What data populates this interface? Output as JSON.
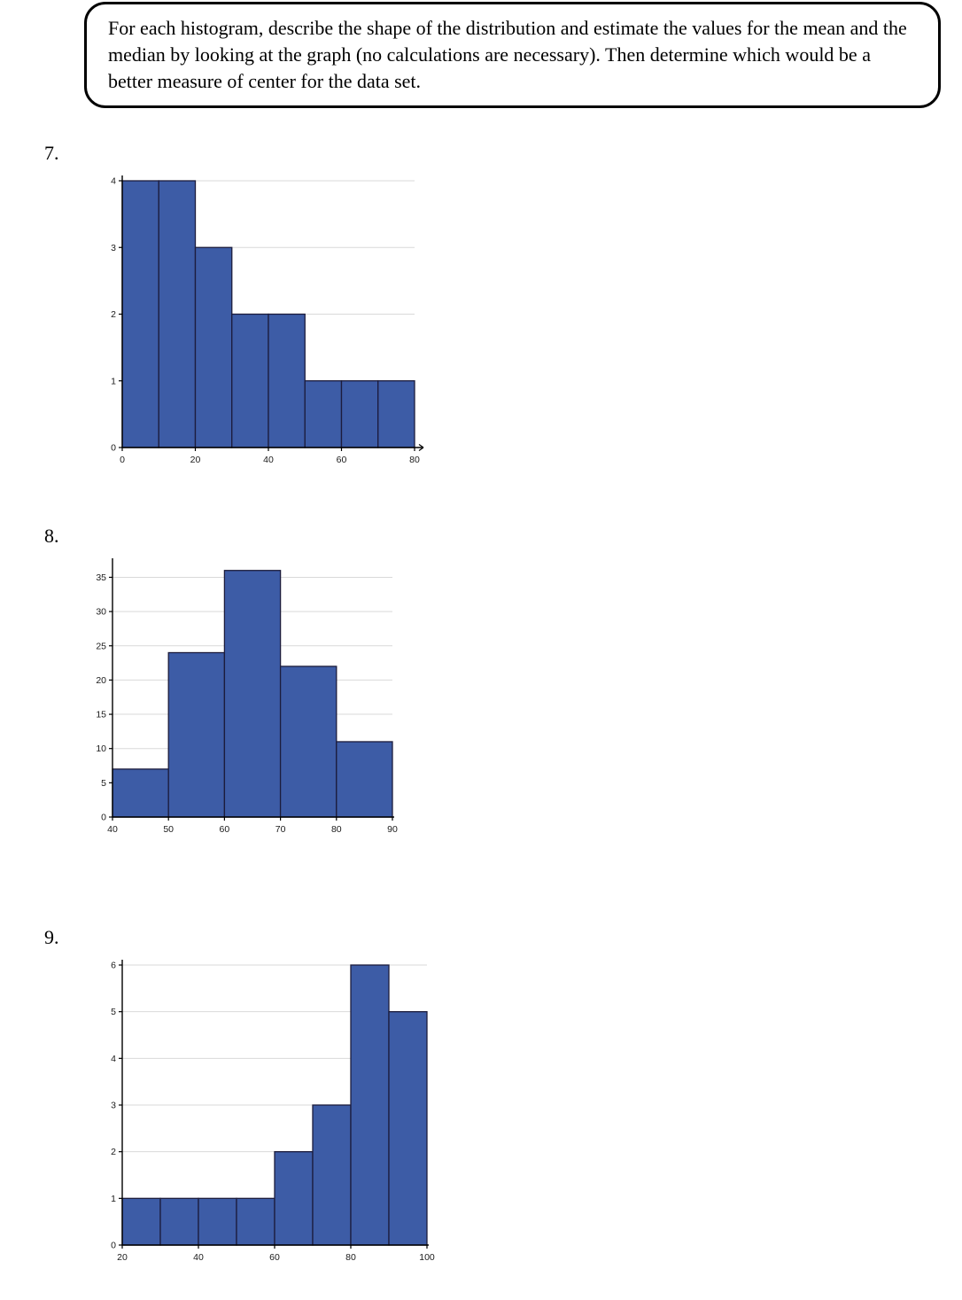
{
  "instructions": {
    "text": "For each histogram, describe the shape of the distribution and estimate the values for the mean and the median by looking at the graph (no calculations are necessary). Then determine which would be a better measure of center for the data set."
  },
  "problems": [
    {
      "number": "7."
    },
    {
      "number": "8."
    },
    {
      "number": "9."
    }
  ],
  "theme": {
    "bar_fill": "#3d5ca6",
    "bar_stroke": "#1c1c3c",
    "axis_color": "#000000",
    "grid_color": "#d9d9d9",
    "label_color": "#1a1a1a"
  },
  "chart_data": [
    {
      "type": "bar",
      "title": "",
      "xlabel": "",
      "ylabel": "",
      "bin_start": 0,
      "bin_width": 10,
      "values": [
        4,
        4,
        3,
        2,
        2,
        1,
        1,
        1
      ],
      "xlim": [
        0,
        80
      ],
      "ylim": [
        0,
        4
      ],
      "x_ticks": [
        0,
        20,
        40,
        60,
        80
      ],
      "y_ticks": [
        0,
        1,
        2,
        3,
        4
      ],
      "grid": true,
      "x_axis_arrow": true,
      "shape_note": "skewed right"
    },
    {
      "type": "bar",
      "title": "",
      "xlabel": "",
      "ylabel": "",
      "bin_start": 40,
      "bin_width": 10,
      "values": [
        7,
        24,
        36,
        22,
        11
      ],
      "xlim": [
        40,
        90
      ],
      "ylim": [
        0,
        37
      ],
      "x_ticks": [
        40,
        50,
        60,
        70,
        80,
        90
      ],
      "y_ticks": [
        0,
        5,
        10,
        15,
        20,
        25,
        30,
        35
      ],
      "grid": true,
      "x_axis_arrow": false,
      "shape_note": "approximately symmetric"
    },
    {
      "type": "bar",
      "title": "",
      "xlabel": "",
      "ylabel": "",
      "bin_start": 20,
      "bin_width": 10,
      "values": [
        1,
        1,
        1,
        1,
        2,
        3,
        6,
        5
      ],
      "xlim": [
        20,
        100
      ],
      "ylim": [
        0,
        6
      ],
      "x_ticks": [
        20,
        40,
        60,
        80,
        100
      ],
      "y_ticks": [
        0,
        1,
        2,
        3,
        4,
        5,
        6
      ],
      "grid": true,
      "x_axis_arrow": false,
      "shape_note": "skewed left"
    }
  ]
}
